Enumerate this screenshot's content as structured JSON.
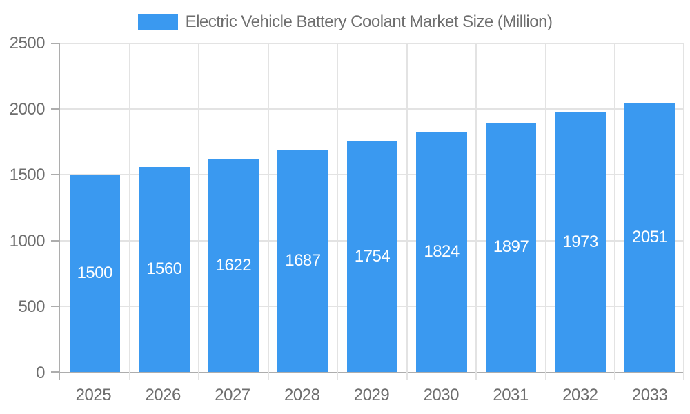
{
  "chart_data": {
    "type": "bar",
    "title": "Electric Vehicle Battery Coolant Market Size (Million)",
    "legend": [
      "Electric Vehicle Battery Coolant Market Size (Million)"
    ],
    "legend_position": "top-center",
    "categories": [
      "2025",
      "2026",
      "2027",
      "2028",
      "2029",
      "2030",
      "2031",
      "2032",
      "2033"
    ],
    "values": [
      1500,
      1560,
      1622,
      1687,
      1754,
      1824,
      1897,
      1973,
      2051
    ],
    "xlabel": "",
    "ylabel": "",
    "ylim": [
      0,
      2500
    ],
    "yticks": [
      0,
      500,
      1000,
      1500,
      2000,
      2500
    ],
    "grid": true,
    "value_labels": "inside-center",
    "colors": {
      "bar": "#3A99F0",
      "grid": "#E3E3E3",
      "axis_line": "#ADADAD",
      "axis_text": "#6E6E6E",
      "value_label": "#FFFFFF",
      "background": "#FFFFFF"
    }
  }
}
